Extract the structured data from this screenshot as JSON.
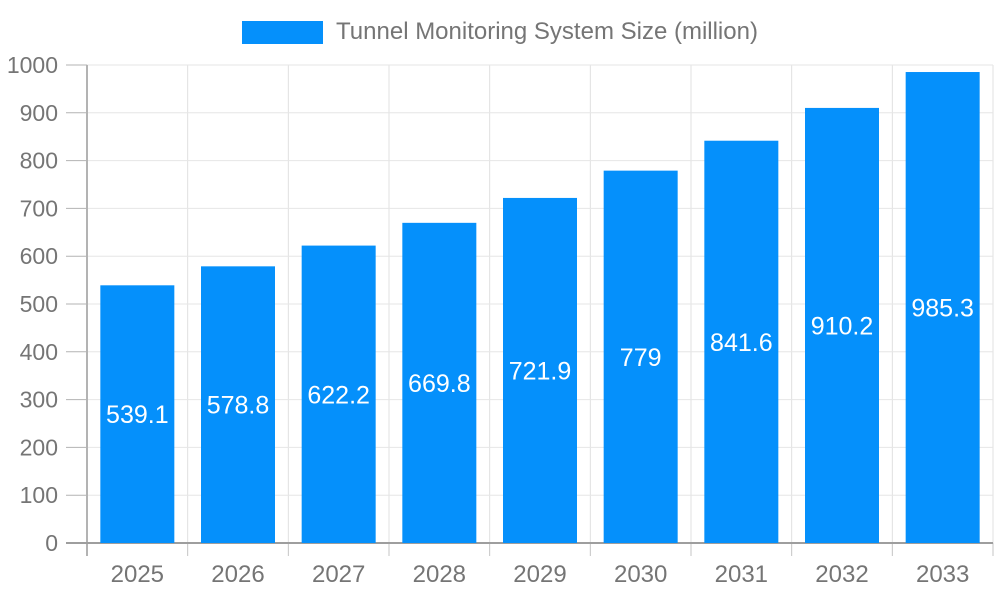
{
  "legend": {
    "label": "Tunnel Monitoring System Size (million)"
  },
  "colors": {
    "bar": "#0590fb",
    "axis_label": "#757575",
    "legend_label": "#757575",
    "value_label": "#ffffff",
    "grid_horizontal": "#e6e6e6",
    "grid_vertical": "#e0e0e0",
    "y_axis_line": "#b3b3b3",
    "x_axis_line": "#9e9e9e",
    "tick": "#c4c4c4",
    "background": "#ffffff"
  },
  "chart_data": {
    "type": "bar",
    "title": "",
    "legend": "Tunnel Monitoring System Size (million)",
    "legend_position": "top",
    "categories": [
      "2025",
      "2026",
      "2027",
      "2028",
      "2029",
      "2030",
      "2031",
      "2032",
      "2033"
    ],
    "values": [
      539.1,
      578.8,
      622.2,
      669.8,
      721.9,
      779,
      841.6,
      910.2,
      985.3
    ],
    "value_labels": [
      "539.1",
      "578.8",
      "622.2",
      "669.8",
      "721.9",
      "779",
      "841.6",
      "910.2",
      "985.3"
    ],
    "xlabel": "",
    "ylabel": "",
    "ylim": [
      0,
      1000
    ],
    "ytick_step": 100,
    "ytick_labels": [
      "0",
      "100",
      "200",
      "300",
      "400",
      "500",
      "600",
      "700",
      "800",
      "900",
      "1000"
    ],
    "grid": true,
    "value_label_position": "inside-center"
  }
}
